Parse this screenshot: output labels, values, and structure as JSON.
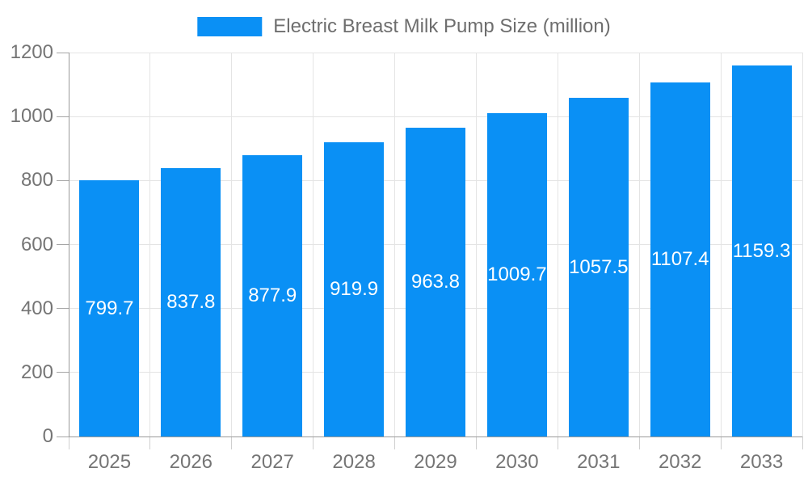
{
  "chart_data": {
    "type": "bar",
    "title": "Electric Breast Milk Pump Size (million)",
    "categories": [
      "2025",
      "2026",
      "2027",
      "2028",
      "2029",
      "2030",
      "2031",
      "2032",
      "2033"
    ],
    "values": [
      799.7,
      837.8,
      877.9,
      919.9,
      963.8,
      1009.7,
      1057.5,
      1107.4,
      1159.3
    ],
    "value_labels": [
      "799.7",
      "837.8",
      "877.9",
      "919.9",
      "963.8",
      "1009.7",
      "1057.5",
      "1107.4",
      "1159.3"
    ],
    "xlabel": "",
    "ylabel": "",
    "ylim": [
      0,
      1200
    ],
    "y_ticks": [
      0,
      200,
      400,
      600,
      800,
      1000,
      1200
    ],
    "grid": true,
    "legend_position": "top-center",
    "bar_label_color": "#ffffff",
    "colors": {
      "bar": "#0a90f5",
      "gridline": "#e4e4e4",
      "axis_line": "#9a9a9a",
      "tick_y": "#a6a6a6",
      "tick_x": "#cfcfcf",
      "axis_text": "#757575",
      "legend_text": "#6e6e6e",
      "background": "#ffffff"
    }
  }
}
